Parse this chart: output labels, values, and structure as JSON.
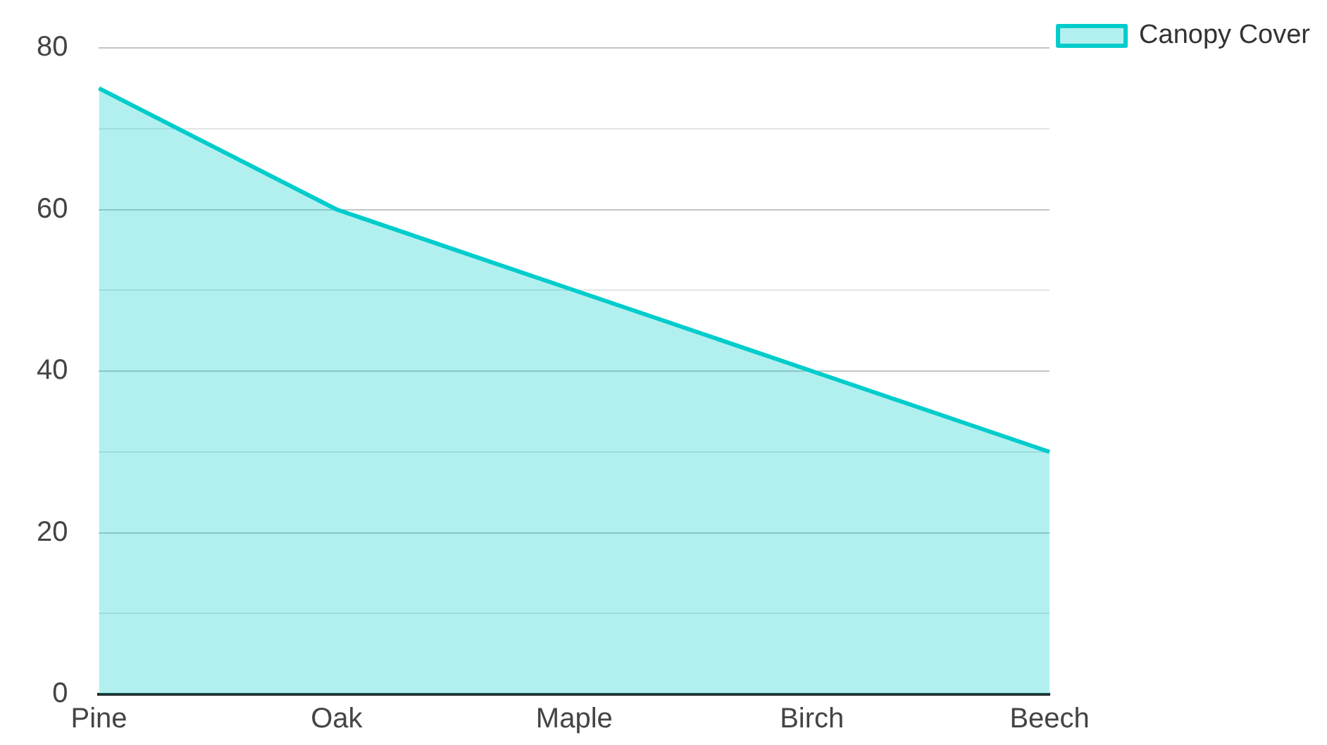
{
  "chart_data": {
    "type": "area",
    "categories": [
      "Pine",
      "Oak",
      "Maple",
      "Birch",
      "Beech"
    ],
    "series": [
      {
        "name": "Canopy Cover",
        "color": "#00cccc",
        "values": [
          75,
          60,
          50,
          40,
          30
        ]
      }
    ],
    "ylim": [
      0,
      80
    ],
    "yticks": [
      0,
      {
        "value": 10,
        "label": null
      },
      20,
      {
        "value": 30,
        "label": null
      },
      40,
      {
        "value": 50,
        "label": null
      },
      60,
      {
        "value": 70,
        "label": null
      },
      80
    ],
    "grid": "y",
    "legend": "top right",
    "marker": "none",
    "line_style": "solid"
  }
}
